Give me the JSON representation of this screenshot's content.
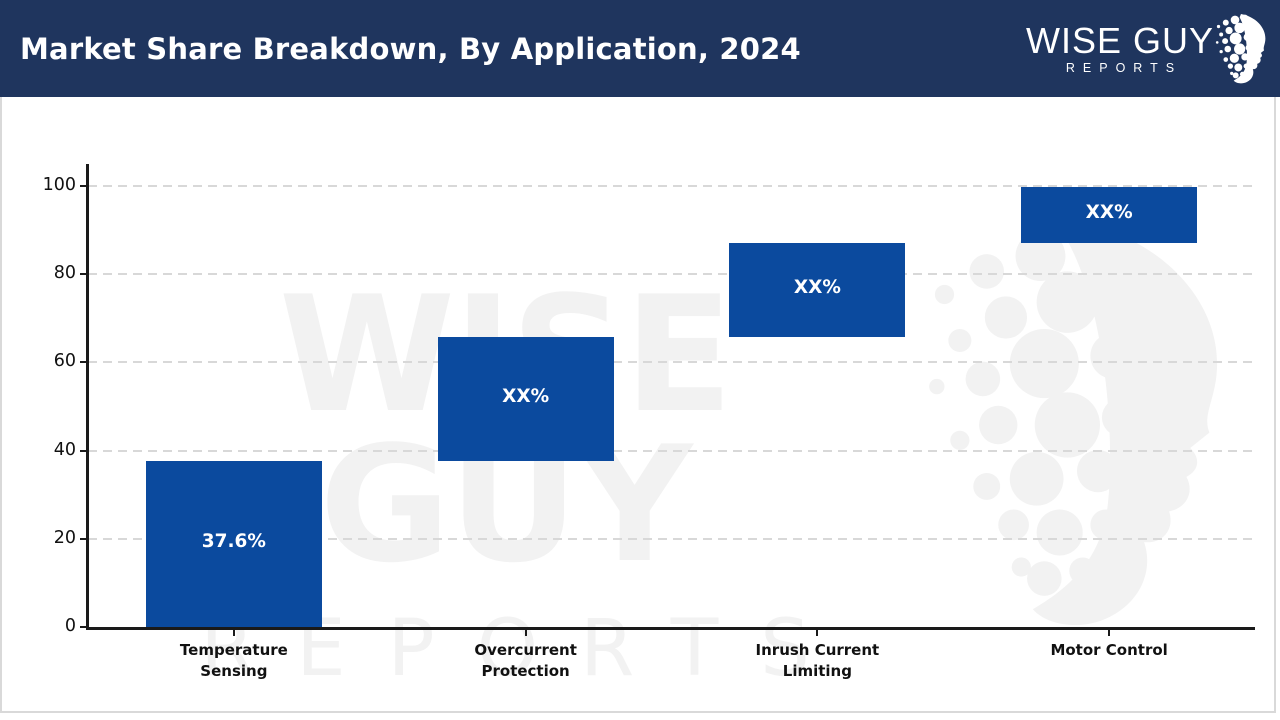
{
  "header": {
    "title": "Market Share Breakdown, By Application, 2024"
  },
  "logo": {
    "title": "WISE GUY",
    "subtitle": "REPORTS"
  },
  "watermark": {
    "title": "WISE GUY",
    "subtitle": "REPORTS"
  },
  "colors": {
    "header_bg": "#1f355e",
    "bar": "#0b4a9e",
    "grid": "#d8d8d8",
    "axis": "#1a1a1a",
    "text": "#111111",
    "watermark": "#f2f2f2",
    "card_border": "#d9d9d9"
  },
  "chart_data": {
    "type": "bar",
    "subtype": "waterfall",
    "title": "Market Share Breakdown, By Application, 2024",
    "categories": [
      "Temperature Sensing",
      "Overcurrent Protection",
      "Inrush Current Limiting",
      "Motor Control"
    ],
    "category_lines": [
      [
        "Temperature",
        "Sensing"
      ],
      [
        "Overcurrent",
        "Protection"
      ],
      [
        "Inrush Current",
        "Limiting"
      ],
      [
        "Motor Control"
      ]
    ],
    "segments": [
      {
        "start": 0,
        "end": 37.6,
        "label": "37.6%"
      },
      {
        "start": 37.6,
        "end": 65.8,
        "label": "XX%"
      },
      {
        "start": 65.8,
        "end": 87.0,
        "label": "XX%"
      },
      {
        "start": 87.0,
        "end": 99.8,
        "label": "XX%"
      }
    ],
    "xlabel": "",
    "ylabel": "",
    "yticks": [
      0,
      20,
      40,
      60,
      80,
      100
    ],
    "ylim": [
      0,
      105
    ],
    "grid": "horizontal-dashed",
    "legend": "none"
  }
}
